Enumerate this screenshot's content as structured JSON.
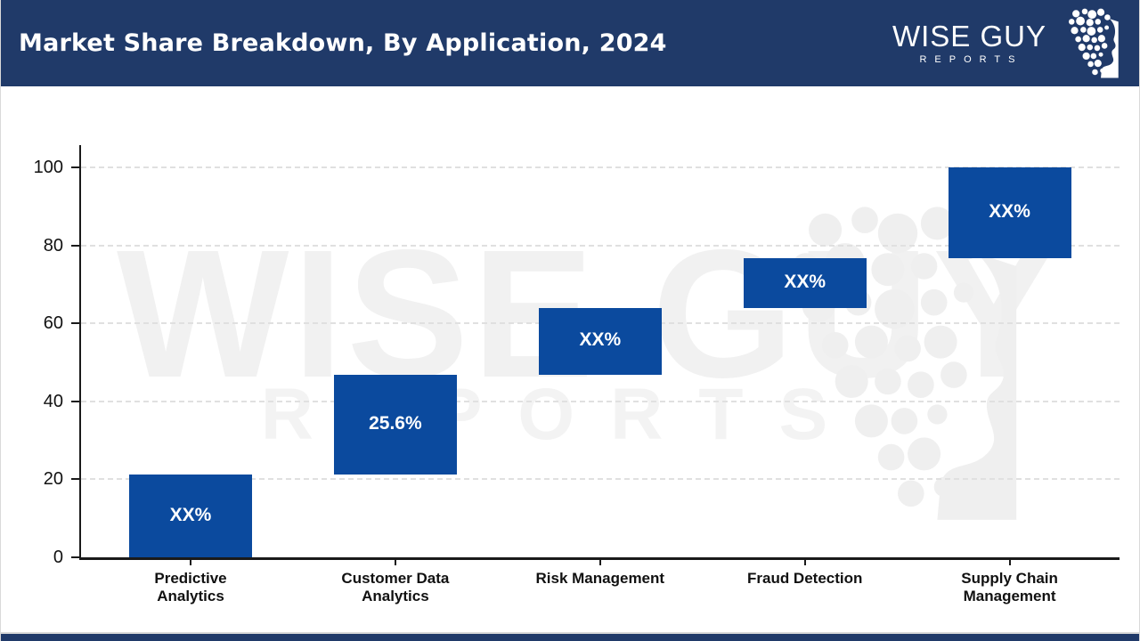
{
  "header": {
    "title": "Market Share Breakdown, By Application, 2024",
    "bg_color": "#203a69",
    "logo": {
      "line1": "WISE GUY",
      "line2": "REPORTS"
    }
  },
  "watermark": {
    "line1": "WISE GUY",
    "line2": "REPORTS"
  },
  "colors": {
    "header_bg": "#203a69",
    "bar": "#0b4a9e",
    "bar_label": "#ffffff",
    "axis": "#1a1a1a",
    "grid": "#e0e0e0",
    "watermark": "#f1f1f1"
  },
  "chart_data": {
    "type": "bar",
    "subtype": "waterfall",
    "title": "Market Share Breakdown, By Application, 2024",
    "xlabel": "",
    "ylabel": "",
    "ylim": [
      0,
      100
    ],
    "yticks": [
      0,
      20,
      40,
      60,
      80,
      100
    ],
    "grid": "horizontal-dashed",
    "legend": "none",
    "categories": [
      "Predictive\nAnalytics",
      "Customer Data\nAnalytics",
      "Risk Management",
      "Fraud Detection",
      "Supply Chain\nManagement"
    ],
    "segments": [
      {
        "category": "Predictive Analytics",
        "start": 0,
        "end": 21.2,
        "height": 21.2,
        "value_label": "XX%"
      },
      {
        "category": "Customer Data Analytics",
        "start": 21.2,
        "end": 46.8,
        "height": 25.6,
        "value_label": "25.6%"
      },
      {
        "category": "Risk Management",
        "start": 46.8,
        "end": 64.0,
        "height": 17.2,
        "value_label": "XX%"
      },
      {
        "category": "Fraud Detection",
        "start": 64.0,
        "end": 76.6,
        "height": 12.6,
        "value_label": "XX%"
      },
      {
        "category": "Supply Chain Management",
        "start": 76.6,
        "end": 100,
        "height": 23.4,
        "value_label": "XX%"
      }
    ]
  }
}
